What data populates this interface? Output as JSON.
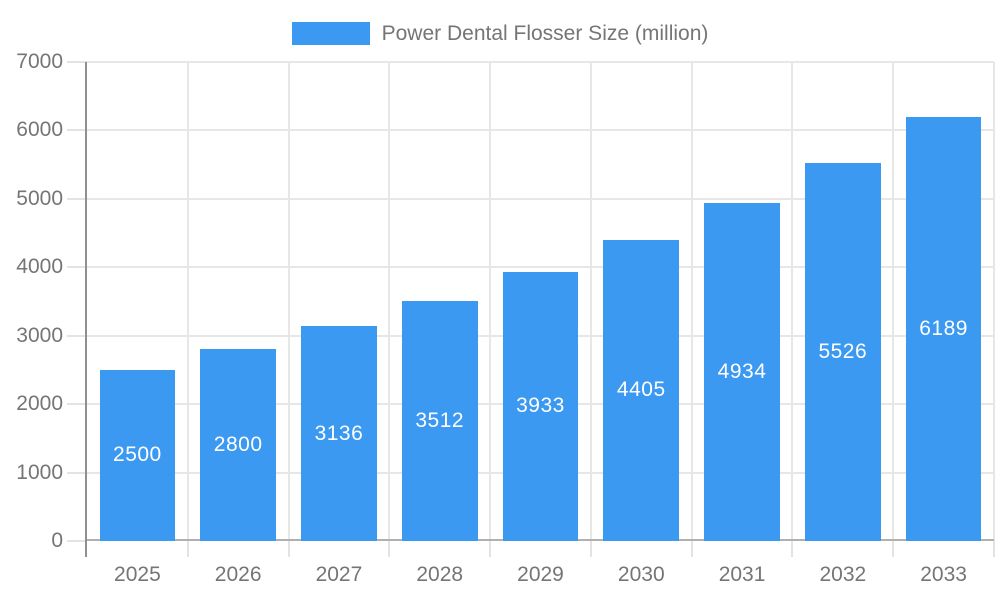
{
  "legend": {
    "label": "Power Dental Flosser Size (million)"
  },
  "chart_data": {
    "type": "bar",
    "title": "Power Dental Flosser Size (million)",
    "categories": [
      "2025",
      "2026",
      "2027",
      "2028",
      "2029",
      "2030",
      "2031",
      "2032",
      "2033"
    ],
    "values": [
      2500,
      2800,
      3136,
      3512,
      3933,
      4405,
      4934,
      5526,
      6189
    ],
    "xlabel": "",
    "ylabel": "",
    "ylim": [
      0,
      7000
    ],
    "ytick_interval": 1000,
    "yticks": [
      "0",
      "1000",
      "2000",
      "3000",
      "4000",
      "5000",
      "6000",
      "7000"
    ],
    "grid": true,
    "legend_position": "top-center",
    "value_labels": "inside-center",
    "colors": {
      "bar": "#3b99f2",
      "value_label": "#ffffff",
      "gridline": "#e7e7e7",
      "tick": "#e3e3e3",
      "axis_y": "#8f8f8f",
      "axis_x": "#b0b0b0",
      "text": "#757575"
    }
  }
}
